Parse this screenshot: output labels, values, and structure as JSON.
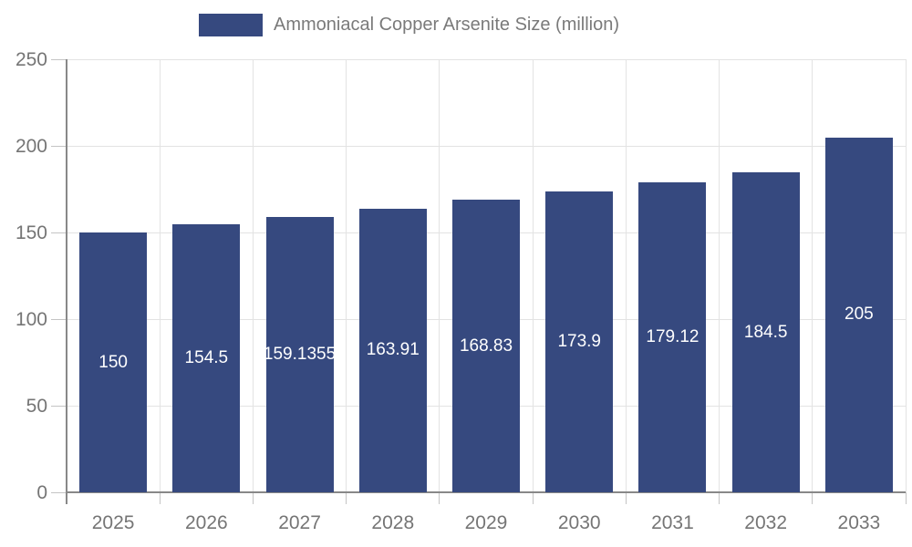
{
  "legend": {
    "label": "Ammoniacal Copper Arsenite Size (million)"
  },
  "chart_data": {
    "type": "bar",
    "title": "Ammoniacal Copper Arsenite Size (million)",
    "categories": [
      "2025",
      "2026",
      "2027",
      "2028",
      "2029",
      "2030",
      "2031",
      "2032",
      "2033"
    ],
    "values": [
      150,
      154.5,
      159.1355,
      163.91,
      168.83,
      173.9,
      179.12,
      184.5,
      205
    ],
    "bar_labels": [
      "150",
      "154.5",
      "159.1355",
      "163.91",
      "168.83",
      "173.9",
      "179.12",
      "184.5",
      "205"
    ],
    "series_name": "Ammoniacal Copper Arsenite Size (million)",
    "xlabel": "",
    "ylabel": "",
    "ylim": [
      0,
      250
    ],
    "yticks": [
      0,
      50,
      100,
      150,
      200,
      250
    ],
    "grid": true,
    "legend_position": "top-center",
    "colors": {
      "bar": "#36497F",
      "grid_line": "#e3e3e3",
      "axis_line": "#888888",
      "tick_mark": "#c4c4c4",
      "axis_text": "#757575",
      "legend_text": "#7a7a7a",
      "bar_label_text": "#ffffff",
      "background": "#ffffff"
    }
  }
}
